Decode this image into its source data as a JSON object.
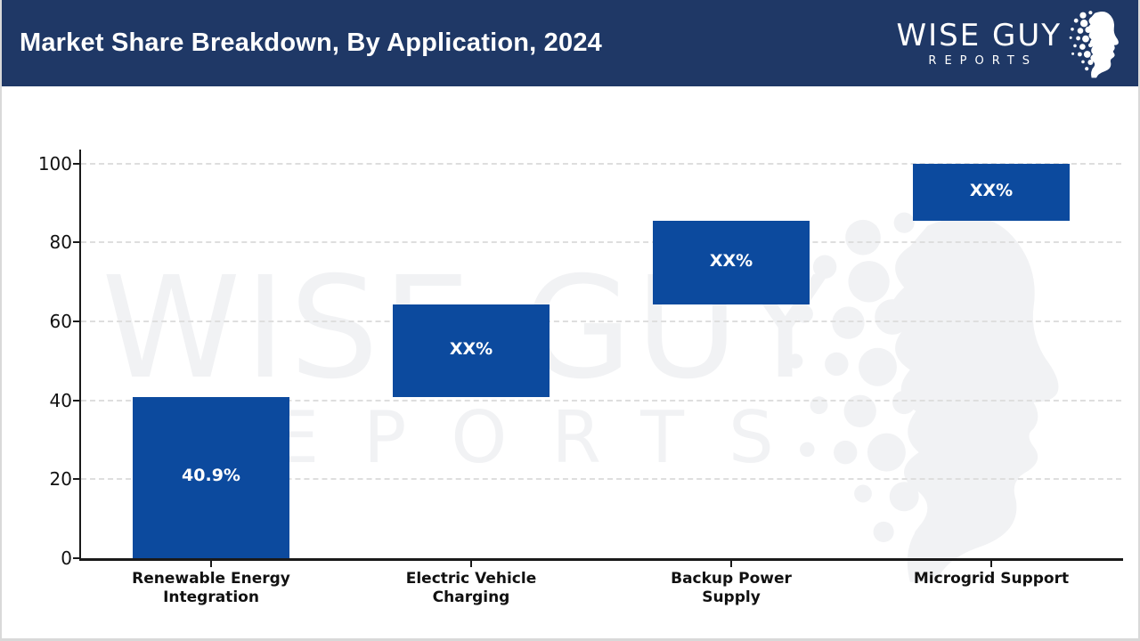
{
  "header": {
    "title": "Market Share Breakdown, By Application, 2024",
    "logo": {
      "primary": "WISE GUY",
      "secondary": "REPORTS"
    }
  },
  "watermark": {
    "line1": "WISE GUY",
    "line2": "REPORTS"
  },
  "colors": {
    "header_bg": "#1f3866",
    "bar": "#0c4a9e",
    "bar_label": "#ffffff",
    "grid": "#dedede",
    "axis": "#1a1a1a",
    "watermark": "#f1f2f4"
  },
  "chart_data": {
    "type": "bar",
    "subtype": "waterfall",
    "title": "Market Share Breakdown, By Application, 2024",
    "categories": [
      [
        "Renewable Energy",
        "Integration"
      ],
      [
        "Electric Vehicle",
        "Charging"
      ],
      [
        "Backup Power",
        "Supply"
      ],
      [
        "Microgrid Support"
      ]
    ],
    "segments": [
      {
        "category": "Renewable Energy Integration",
        "start": 0,
        "end": 40.9,
        "increment": 40.9,
        "label": "40.9%"
      },
      {
        "category": "Electric Vehicle Charging",
        "start": 40.9,
        "end": 64.2,
        "increment": 23.3,
        "label": "XX%"
      },
      {
        "category": "Backup Power Supply",
        "start": 64.2,
        "end": 85.4,
        "increment": 21.2,
        "label": "XX%"
      },
      {
        "category": "Microgrid Support",
        "start": 85.4,
        "end": 100,
        "increment": 14.6,
        "label": "XX%"
      }
    ],
    "xlabel": "",
    "ylabel": "",
    "yticks": [
      0,
      20,
      40,
      60,
      80,
      100
    ],
    "ylim": [
      0,
      103.5
    ],
    "grid": "horizontal-dashed",
    "legend": "none"
  }
}
